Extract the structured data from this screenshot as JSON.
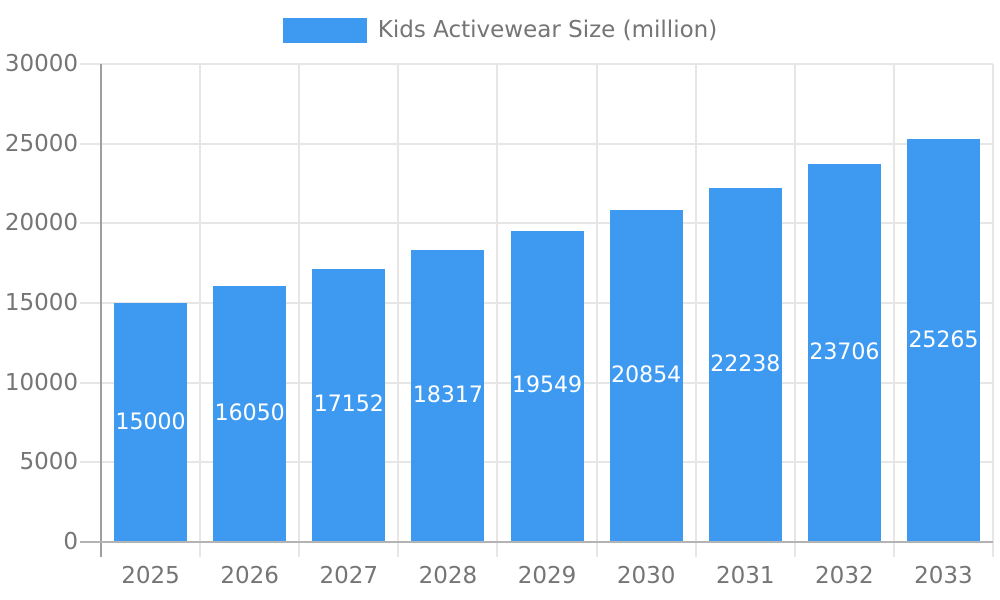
{
  "legend": {
    "label": "Kids Activewear Size (million)"
  },
  "colors": {
    "bar": "#3D9AF0",
    "axis_text": "#757575",
    "grid": "#E6E6E6",
    "axis_line": "#9E9E9E",
    "zero_line": "#B3B3B3",
    "value_label": "#FFFFFF",
    "background": "#FFFFFF"
  },
  "chart_data": {
    "type": "bar",
    "title": "Kids Activewear Size (million)",
    "series_name": "Kids Activewear Size (million)",
    "categories": [
      "2025",
      "2026",
      "2027",
      "2028",
      "2029",
      "2030",
      "2031",
      "2032",
      "2033"
    ],
    "values": [
      15000,
      16050,
      17152,
      18317,
      19549,
      20854,
      22238,
      23706,
      25265
    ],
    "xlabel": "",
    "ylabel": "",
    "ylim": [
      0,
      30000
    ],
    "yticks": [
      0,
      5000,
      10000,
      15000,
      20000,
      25000,
      30000
    ],
    "grid": true,
    "legend_position": "top",
    "value_label_position": "inside-center",
    "value_label_color": "#FFFFFF"
  }
}
